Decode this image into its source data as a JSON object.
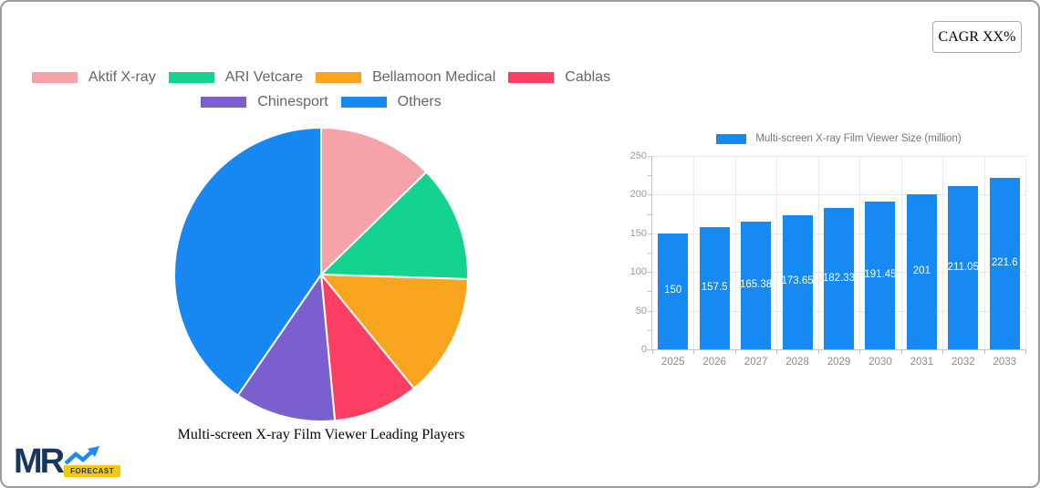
{
  "cagr_badge": "CAGR XX%",
  "logo": {
    "text": "MR",
    "sub": "FORECAST"
  },
  "chart_data": [
    {
      "type": "pie",
      "title": "Multi-screen X-ray Film Viewer Leading Players",
      "legend_position": "top",
      "legend_rows": [
        [
          "Aktif X-ray",
          "ARI Vetcare",
          "Bellamoon Medical",
          "Cablas"
        ],
        [
          "Chinesport",
          "Others"
        ]
      ],
      "start_angle": "top",
      "direction": "clockwise",
      "series": [
        {
          "name": "Aktif X-ray",
          "value": 12.7,
          "color": "#f5a3a9"
        },
        {
          "name": "ARI Vetcare",
          "value": 12.8,
          "color": "#14d38f"
        },
        {
          "name": "Bellamoon Medical",
          "value": 13.6,
          "color": "#f9a41f"
        },
        {
          "name": "Cablas",
          "value": 9.4,
          "color": "#fb3e62"
        },
        {
          "name": "Chinesport",
          "value": 11.1,
          "color": "#7a5fce"
        },
        {
          "name": "Others",
          "value": 40.4,
          "color": "#1787f1"
        }
      ]
    },
    {
      "type": "bar",
      "legend": "Multi-screen X-ray Film Viewer Size (million)",
      "categories": [
        "2025",
        "2026",
        "2027",
        "2028",
        "2029",
        "2030",
        "2031",
        "2032",
        "2033"
      ],
      "values": [
        150,
        157.5,
        165.38,
        173.65,
        182.33,
        191.45,
        201,
        211.05,
        221.6
      ],
      "bar_color": "#1689f2",
      "value_label_color": "#ffffff",
      "ylim": [
        0,
        250
      ],
      "ytick_step": 50,
      "yminor_step": 25,
      "grid": true,
      "legend_position": "top"
    }
  ]
}
